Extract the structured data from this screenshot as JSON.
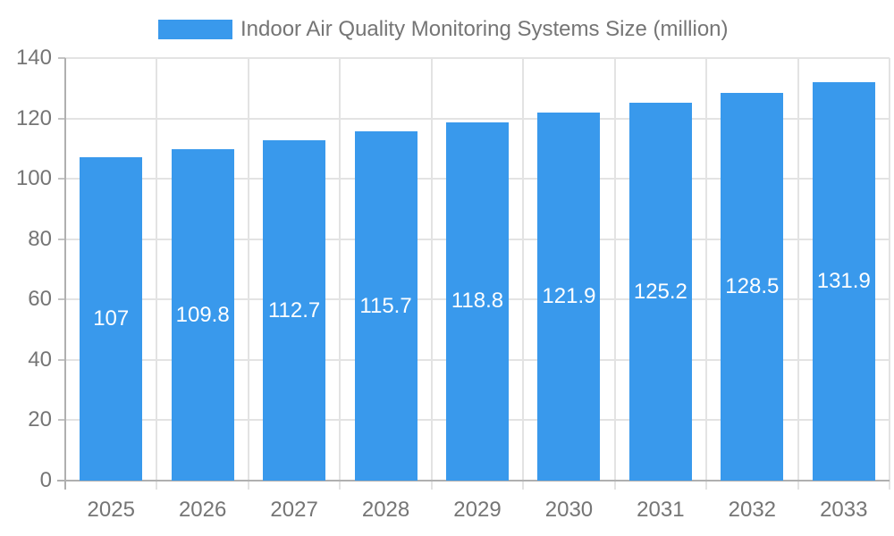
{
  "legend": {
    "label": "Indoor Air Quality Monitoring Systems Size (million)",
    "position": "top"
  },
  "chart_data": {
    "type": "bar",
    "title": "Indoor Air Quality Monitoring Systems Size (million)",
    "categories": [
      "2025",
      "2026",
      "2027",
      "2028",
      "2029",
      "2030",
      "2031",
      "2032",
      "2033"
    ],
    "values": [
      107,
      109.8,
      112.7,
      115.7,
      118.8,
      121.9,
      125.2,
      128.5,
      131.9
    ],
    "bar_labels": [
      "107",
      "109.8",
      "112.7",
      "115.7",
      "118.8",
      "121.9",
      "125.2",
      "128.5",
      "131.9"
    ],
    "xlabel": "",
    "ylabel": "",
    "ylim": [
      0,
      140
    ],
    "yticks": [
      0,
      20,
      40,
      60,
      80,
      100,
      120,
      140
    ],
    "grid": true,
    "legend_position": "top"
  },
  "colors": {
    "bar": "#3999EC",
    "bar_label_text": "#ffffff",
    "grid": "#e3e3e3",
    "axis": "#b0b0b0",
    "tick": "#c4c4c4",
    "tick_text": "#757575",
    "legend_text": "#757575",
    "background": "#ffffff"
  }
}
